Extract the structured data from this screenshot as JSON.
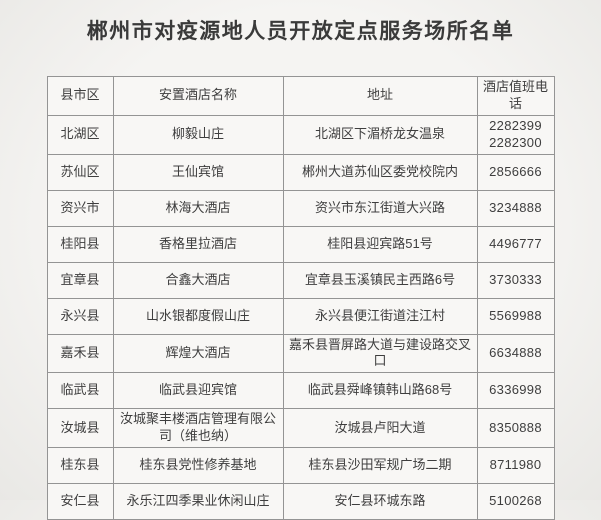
{
  "page": {
    "title": "郴州市对疫源地人员开放定点服务场所名单"
  },
  "colors": {
    "page_background": "#f1f0ee",
    "table_background": "#f8f7f5",
    "border": "#949494",
    "text": "#3e3e3e",
    "title_text": "#3a3a3a"
  },
  "table": {
    "headers": [
      "县市区",
      "安置酒店名称",
      "地址",
      "酒店值班电话"
    ],
    "rows": [
      {
        "district": "北湖区",
        "hotel": "柳毅山庄",
        "address": "北湖区下湄桥龙女温泉",
        "phone": "2282399\n2282300"
      },
      {
        "district": "苏仙区",
        "hotel": "王仙宾馆",
        "address": "郴州大道苏仙区委党校院内",
        "phone": "2856666"
      },
      {
        "district": "资兴市",
        "hotel": "林海大酒店",
        "address": "资兴市东江街道大兴路",
        "phone": "3234888"
      },
      {
        "district": "桂阳县",
        "hotel": "香格里拉酒店",
        "address": "桂阳县迎宾路51号",
        "phone": "4496777"
      },
      {
        "district": "宜章县",
        "hotel": "合鑫大酒店",
        "address": "宜章县玉溪镇民主西路6号",
        "phone": "3730333"
      },
      {
        "district": "永兴县",
        "hotel": "山水银都度假山庄",
        "address": "永兴县便江街道注江村",
        "phone": "5569988"
      },
      {
        "district": "嘉禾县",
        "hotel": "辉煌大酒店",
        "address": "嘉禾县晋屏路大道与建设路交叉口",
        "phone": "6634888"
      },
      {
        "district": "临武县",
        "hotel": "临武县迎宾馆",
        "address": "临武县舜峰镇韩山路68号",
        "phone": "6336998"
      },
      {
        "district": "汝城县",
        "hotel": "汝城聚丰楼酒店管理有限公司（维也纳）",
        "address": "汝城县卢阳大道",
        "phone": "8350888"
      },
      {
        "district": "桂东县",
        "hotel": "桂东县党性修养基地",
        "address": "桂东县沙田军规广场二期",
        "phone": "8711980"
      },
      {
        "district": "安仁县",
        "hotel": "永乐江四季果业休闲山庄",
        "address": "安仁县环城东路",
        "phone": "5100268"
      }
    ]
  }
}
